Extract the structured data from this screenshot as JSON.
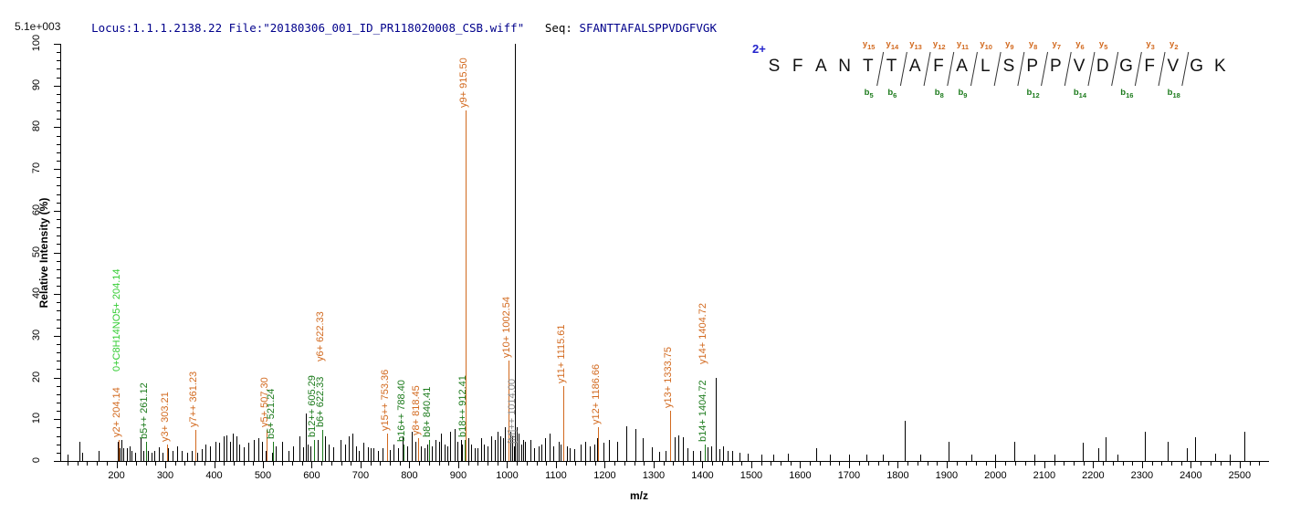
{
  "header": {
    "locus_file": "Locus:1.1.1.2138.22 File:\"20180306_001_ID_PR118020008_CSB.wiff\"",
    "seq_label": "Seq:",
    "seq_value": "SFANTTAFALSPPVDGFVGK",
    "intensity_scale": "5.1e+003"
  },
  "colors": {
    "y_ion": "#d2691e",
    "b_ion": "#1b7a1b",
    "special_green": "#33cc33",
    "precursor_gray": "#8a8a8a",
    "noise_black": "#000000",
    "header_navy": "#00008b",
    "charge_blue": "#2323cc",
    "axis_black": "#000000"
  },
  "axes": {
    "x": {
      "title": "m/z",
      "plot_min": 85,
      "plot_max": 2560,
      "label_start": 200,
      "label_end": 2500,
      "major_step": 100,
      "minor_step": 20,
      "tick_labels": [
        "200",
        "300",
        "400",
        "500",
        "600",
        "700",
        "800",
        "900",
        "1000",
        "1100",
        "1200",
        "1300",
        "1400",
        "1500",
        "1600",
        "1700",
        "1800",
        "1900",
        "2000",
        "2100",
        "2200",
        "2300",
        "2400",
        "2500"
      ]
    },
    "y": {
      "title": "Relative  Intensity  (%)",
      "min": 0,
      "max": 100,
      "major_step": 10,
      "minor_step": 2,
      "tick_labels": [
        "0",
        "10",
        "20",
        "30",
        "40",
        "50",
        "60",
        "70",
        "80",
        "90",
        "100"
      ]
    }
  },
  "sequence_annotation": {
    "charge": "2+",
    "residues": [
      "S",
      "F",
      "A",
      "N",
      "T",
      "T",
      "A",
      "F",
      "A",
      "L",
      "S",
      "P",
      "P",
      "V",
      "D",
      "G",
      "F",
      "V",
      "G",
      "K"
    ],
    "cleavages": [
      {
        "gap": 5,
        "y": "y15",
        "b": "b5"
      },
      {
        "gap": 6,
        "y": "y14",
        "b": "b6"
      },
      {
        "gap": 7,
        "y": "y13",
        "b": ""
      },
      {
        "gap": 8,
        "y": "y12",
        "b": "b8"
      },
      {
        "gap": 9,
        "y": "y11",
        "b": "b9"
      },
      {
        "gap": 10,
        "y": "y10",
        "b": ""
      },
      {
        "gap": 11,
        "y": "y9",
        "b": ""
      },
      {
        "gap": 12,
        "y": "y8",
        "b": "b12"
      },
      {
        "gap": 13,
        "y": "y7",
        "b": ""
      },
      {
        "gap": 14,
        "y": "y6",
        "b": "b14"
      },
      {
        "gap": 15,
        "y": "y5",
        "b": ""
      },
      {
        "gap": 16,
        "y": "",
        "b": "b16"
      },
      {
        "gap": 17,
        "y": "y3",
        "b": ""
      },
      {
        "gap": 18,
        "y": "y2",
        "b": "b18"
      }
    ]
  },
  "chart_data": {
    "type": "bar",
    "subtype": "ms2-spectrum",
    "title": "",
    "xlabel": "m/z",
    "ylabel": "Relative Intensity (%)",
    "xlim": [
      85,
      2560
    ],
    "ylim": [
      0,
      100
    ],
    "grid": false,
    "labeled_peaks": [
      {
        "mz": 204.14,
        "intensity": 5,
        "peak_color": "y_ion",
        "labels": [
          {
            "text": "y2+ 204.14",
            "color": "y_ion"
          },
          {
            "text": "0+C8H14NO5+ 204.14",
            "color": "special_green"
          }
        ]
      },
      {
        "mz": 261.12,
        "intensity": 4.5,
        "peak_color": "b_ion",
        "labels": [
          {
            "text": "b5++ 261.12",
            "color": "b_ion"
          }
        ]
      },
      {
        "mz": 303.21,
        "intensity": 4,
        "peak_color": "y_ion",
        "labels": [
          {
            "text": "y3+ 303.21",
            "color": "y_ion"
          }
        ]
      },
      {
        "mz": 361.23,
        "intensity": 7.5,
        "peak_color": "y_ion",
        "labels": [
          {
            "text": "y7++ 361.23",
            "color": "y_ion"
          }
        ]
      },
      {
        "mz": 507.3,
        "intensity": 7.5,
        "peak_color": "y_ion",
        "labels": [
          {
            "text": "y5+ 507.30",
            "color": "y_ion"
          }
        ]
      },
      {
        "mz": 521.24,
        "intensity": 4.5,
        "peak_color": "b_ion",
        "labels": [
          {
            "text": "b5+ 521.24",
            "color": "b_ion"
          }
        ]
      },
      {
        "mz": 605.29,
        "intensity": 5,
        "peak_color": "b_ion",
        "labels": [
          {
            "text": "b12++ 605.29",
            "color": "b_ion"
          }
        ]
      },
      {
        "mz": 622.33,
        "intensity": 7.5,
        "peak_color": "b_ion",
        "labels": [
          {
            "text": "b6+ 622.33",
            "color": "b_ion"
          },
          {
            "text": "y6+ 622.33",
            "color": "y_ion"
          }
        ]
      },
      {
        "mz": 753.36,
        "intensity": 6.5,
        "peak_color": "y_ion",
        "labels": [
          {
            "text": "y15++ 753.36",
            "color": "y_ion"
          }
        ]
      },
      {
        "mz": 788.4,
        "intensity": 4,
        "peak_color": "b_ion",
        "labels": [
          {
            "text": "b16++ 788.40",
            "color": "b_ion"
          }
        ]
      },
      {
        "mz": 818.45,
        "intensity": 5.5,
        "peak_color": "y_ion",
        "labels": [
          {
            "text": "y8+ 818.45",
            "color": "y_ion"
          }
        ]
      },
      {
        "mz": 840.41,
        "intensity": 5,
        "peak_color": "b_ion",
        "labels": [
          {
            "text": "b8+ 840.41",
            "color": "b_ion"
          }
        ]
      },
      {
        "mz": 912.41,
        "intensity": 5,
        "peak_color": "b_ion",
        "labels": [
          {
            "text": "b18++ 912.41",
            "color": "b_ion"
          }
        ]
      },
      {
        "mz": 915.5,
        "intensity": 84,
        "peak_color": "y_ion",
        "labels": [
          {
            "text": "y9+ 915.50",
            "color": "y_ion"
          }
        ]
      },
      {
        "mz": 1002.54,
        "intensity": 24,
        "peak_color": "y_ion",
        "labels": [
          {
            "text": "y10+ 1002.54",
            "color": "y_ion"
          }
        ]
      },
      {
        "mz": 1014.0,
        "intensity": 3.5,
        "peak_color": "noise_black",
        "labels": [
          {
            "text": "[M]++ 1014.00",
            "color": "precursor_gray"
          }
        ]
      },
      {
        "mz": 1115.61,
        "intensity": 18,
        "peak_color": "y_ion",
        "labels": [
          {
            "text": "y11+ 1115.61",
            "color": "y_ion"
          }
        ]
      },
      {
        "mz": 1186.66,
        "intensity": 8,
        "peak_color": "y_ion",
        "labels": [
          {
            "text": "y12+ 1186.66",
            "color": "y_ion"
          }
        ]
      },
      {
        "mz": 1333.75,
        "intensity": 12,
        "peak_color": "y_ion",
        "labels": [
          {
            "text": "y13+ 1333.75",
            "color": "y_ion"
          }
        ]
      },
      {
        "mz": 1404.72,
        "intensity": 4,
        "peak_color": "b_ion",
        "labels": [
          {
            "text": "b14+ 1404.72",
            "color": "b_ion"
          },
          {
            "text": "y14+ 1404.72",
            "color": "y_ion"
          }
        ]
      }
    ],
    "base_peak": {
      "mz": 1016.5,
      "intensity": 100,
      "peak_color": "noise_black"
    },
    "noise_peaks": [
      [
        100,
        1.5
      ],
      [
        124,
        4.5
      ],
      [
        130,
        2
      ],
      [
        163,
        2.5
      ],
      [
        203,
        4.5
      ],
      [
        206,
        3
      ],
      [
        210,
        5
      ],
      [
        214,
        3
      ],
      [
        222,
        3
      ],
      [
        227,
        3.5
      ],
      [
        231,
        2.5
      ],
      [
        238,
        2
      ],
      [
        250,
        5.5
      ],
      [
        255,
        2.5
      ],
      [
        265,
        2.5
      ],
      [
        272,
        2
      ],
      [
        277,
        2.5
      ],
      [
        287,
        3.3
      ],
      [
        295,
        2
      ],
      [
        305,
        3
      ],
      [
        315,
        2.5
      ],
      [
        325,
        3.6
      ],
      [
        333,
        2.5
      ],
      [
        345,
        2
      ],
      [
        355,
        2.5
      ],
      [
        366,
        2
      ],
      [
        374,
        2.9
      ],
      [
        383,
        4
      ],
      [
        392,
        3.6
      ],
      [
        403,
        4.7
      ],
      [
        411,
        4.4
      ],
      [
        420,
        5.8
      ],
      [
        426,
        6.2
      ],
      [
        432,
        4.5
      ],
      [
        439,
        6.6
      ],
      [
        445,
        6
      ],
      [
        452,
        4
      ],
      [
        460,
        3.3
      ],
      [
        471,
        4.4
      ],
      [
        482,
        5
      ],
      [
        490,
        5.5
      ],
      [
        498,
        4.7
      ],
      [
        505,
        2.5
      ],
      [
        518,
        2
      ],
      [
        527,
        3.5
      ],
      [
        540,
        4.5
      ],
      [
        552,
        2.5
      ],
      [
        561,
        3.6
      ],
      [
        574,
        5.8
      ],
      [
        582,
        3.3
      ],
      [
        587,
        11.3
      ],
      [
        591,
        4
      ],
      [
        597,
        3.5
      ],
      [
        612,
        5
      ],
      [
        627,
        5.8
      ],
      [
        634,
        4
      ],
      [
        644,
        3.3
      ],
      [
        659,
        5
      ],
      [
        668,
        4
      ],
      [
        676,
        5.8
      ],
      [
        683,
        6.6
      ],
      [
        690,
        3.6
      ],
      [
        696,
        2.5
      ],
      [
        705,
        4.4
      ],
      [
        715,
        3.3
      ],
      [
        720,
        3
      ],
      [
        727,
        3
      ],
      [
        735,
        2.5
      ],
      [
        744,
        3
      ],
      [
        760,
        2.7
      ],
      [
        768,
        4
      ],
      [
        776,
        3
      ],
      [
        786,
        6
      ],
      [
        795,
        3.5
      ],
      [
        805,
        7
      ],
      [
        812,
        4.5
      ],
      [
        824,
        3.5
      ],
      [
        830,
        3
      ],
      [
        836,
        4
      ],
      [
        845,
        3.5
      ],
      [
        853,
        5
      ],
      [
        860,
        4.5
      ],
      [
        865,
        6.5
      ],
      [
        872,
        4
      ],
      [
        878,
        3.5
      ],
      [
        884,
        7
      ],
      [
        893,
        7.7
      ],
      [
        899,
        4.5
      ],
      [
        905,
        5
      ],
      [
        908,
        4
      ],
      [
        920,
        5.5
      ],
      [
        926,
        4
      ],
      [
        933,
        3
      ],
      [
        940,
        3
      ],
      [
        946,
        5.5
      ],
      [
        953,
        4
      ],
      [
        960,
        3.5
      ],
      [
        968,
        6
      ],
      [
        975,
        5
      ],
      [
        981,
        7
      ],
      [
        986,
        6
      ],
      [
        991,
        5.5
      ],
      [
        996,
        8
      ],
      [
        1006,
        7
      ],
      [
        1010,
        6
      ],
      [
        1020,
        8
      ],
      [
        1024,
        6.5
      ],
      [
        1029,
        4
      ],
      [
        1033,
        5
      ],
      [
        1037,
        4.5
      ],
      [
        1047,
        5
      ],
      [
        1055,
        3
      ],
      [
        1064,
        3.5
      ],
      [
        1071,
        4
      ],
      [
        1077,
        5.5
      ],
      [
        1087,
        6.5
      ],
      [
        1095,
        3.5
      ],
      [
        1105,
        4.5
      ],
      [
        1110,
        4
      ],
      [
        1122,
        3.5
      ],
      [
        1129,
        3
      ],
      [
        1137,
        2.9
      ],
      [
        1150,
        4
      ],
      [
        1160,
        4.5
      ],
      [
        1170,
        3.5
      ],
      [
        1178,
        4
      ],
      [
        1184,
        5.5
      ],
      [
        1197,
        4.4
      ],
      [
        1208,
        5
      ],
      [
        1225,
        4.7
      ],
      [
        1244,
        8.4
      ],
      [
        1262,
        7.7
      ],
      [
        1277,
        5.5
      ],
      [
        1296,
        3.3
      ],
      [
        1311,
        2.2
      ],
      [
        1325,
        2.5
      ],
      [
        1343,
        5.7
      ],
      [
        1351,
        6.2
      ],
      [
        1360,
        5.7
      ],
      [
        1370,
        3
      ],
      [
        1381,
        2.5
      ],
      [
        1395,
        2.3
      ],
      [
        1410,
        3.3
      ],
      [
        1417,
        3.5
      ],
      [
        1427,
        20
      ],
      [
        1434,
        2.9
      ],
      [
        1443,
        3.5
      ],
      [
        1452,
        2.5
      ],
      [
        1460,
        2.4
      ],
      [
        1475,
        2
      ],
      [
        1492,
        1.8
      ],
      [
        1520,
        1.5
      ],
      [
        1545,
        1.5
      ],
      [
        1575,
        1.8
      ],
      [
        1632,
        3
      ],
      [
        1660,
        1.5
      ],
      [
        1700,
        1.6
      ],
      [
        1735,
        1.5
      ],
      [
        1770,
        1.5
      ],
      [
        1814,
        9.7
      ],
      [
        1845,
        1.5
      ],
      [
        1904,
        4.7
      ],
      [
        1950,
        1.5
      ],
      [
        2000,
        1.6
      ],
      [
        2038,
        4.7
      ],
      [
        2080,
        1.5
      ],
      [
        2120,
        1.5
      ],
      [
        2178,
        4.4
      ],
      [
        2210,
        3
      ],
      [
        2225,
        5.6
      ],
      [
        2250,
        1.5
      ],
      [
        2306,
        6.9
      ],
      [
        2352,
        4.5
      ],
      [
        2392,
        3
      ],
      [
        2409,
        5.6
      ],
      [
        2450,
        1.8
      ],
      [
        2480,
        1.5
      ],
      [
        2510,
        7
      ]
    ]
  }
}
